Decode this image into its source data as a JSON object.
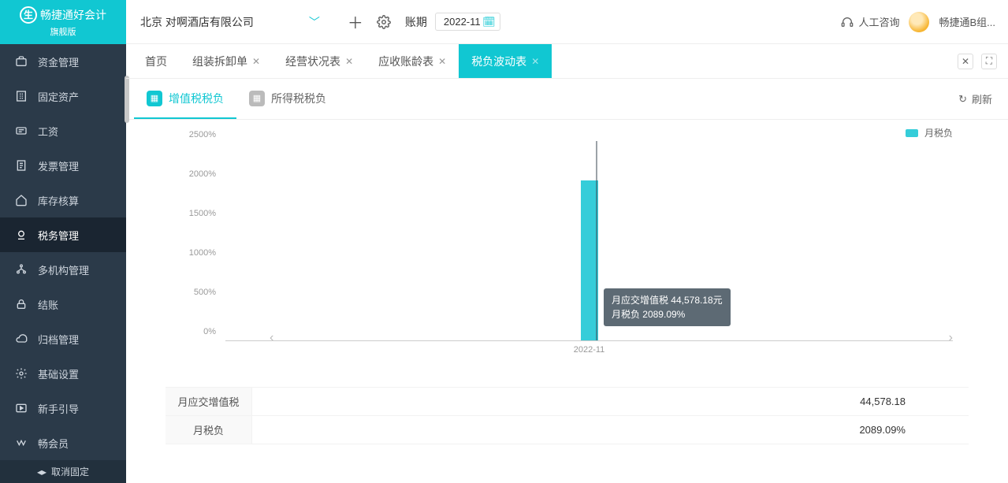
{
  "brand": {
    "name": "畅捷通好会计",
    "edition": "旗舰版"
  },
  "header": {
    "company": "北京 对啊酒店有限公司",
    "period_label": "账期",
    "period_value": "2022-11",
    "consult_label": "人工咨询",
    "user_name": "畅捷通B组..."
  },
  "sidebar": {
    "items": [
      {
        "label": "资金管理",
        "icon": "briefcase"
      },
      {
        "label": "固定资产",
        "icon": "building"
      },
      {
        "label": "工资",
        "icon": "money"
      },
      {
        "label": "发票管理",
        "icon": "receipt"
      },
      {
        "label": "库存核算",
        "icon": "home"
      },
      {
        "label": "税务管理",
        "icon": "seal",
        "active": true
      },
      {
        "label": "多机构管理",
        "icon": "org"
      },
      {
        "label": "结账",
        "icon": "lock"
      },
      {
        "label": "归档管理",
        "icon": "cloud"
      },
      {
        "label": "基础设置",
        "icon": "gear"
      },
      {
        "label": "新手引导",
        "icon": "play"
      },
      {
        "label": "畅会员",
        "icon": "vip"
      }
    ],
    "footer": "取消固定"
  },
  "tabs": {
    "items": [
      {
        "label": "首页",
        "closable": false
      },
      {
        "label": "组装拆卸单",
        "closable": true
      },
      {
        "label": "经营状况表",
        "closable": true
      },
      {
        "label": "应收账龄表",
        "closable": true
      },
      {
        "label": "税负波动表",
        "closable": true,
        "active": true
      }
    ]
  },
  "subTabs": {
    "items": [
      {
        "label": "增值税税负",
        "active": true
      },
      {
        "label": "所得税税负",
        "active": false
      }
    ],
    "refresh": "刷新"
  },
  "chart": {
    "type": "bar",
    "legend_label": "月税负",
    "legend_color": "#35cdd9",
    "background_color": "#ffffff",
    "axis_color": "#cccccc",
    "text_color": "#999999",
    "bar_color": "#35cdd9",
    "y_ticks": [
      0,
      500,
      1000,
      1500,
      2000,
      2500
    ],
    "y_suffix": "%",
    "y_max": 2500,
    "x_category": "2022-11",
    "bar_value": 2089.09,
    "tooltip": {
      "line1": "月应交增值税 44,578.18元",
      "line2": "月税负 2089.09%",
      "bg": "#5d6a74"
    }
  },
  "table": {
    "rows": [
      {
        "label": "月应交增值税",
        "value": "44,578.18"
      },
      {
        "label": "月税负",
        "value": "2089.09%"
      }
    ]
  }
}
